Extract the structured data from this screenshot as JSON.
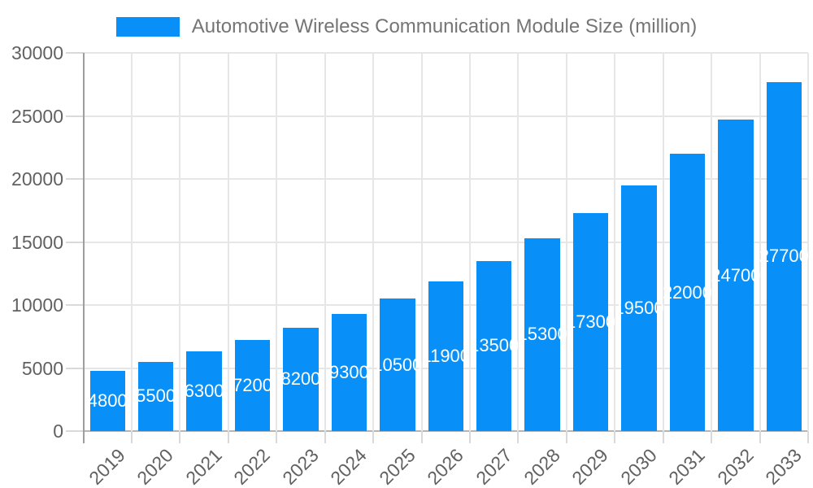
{
  "chart_data": {
    "type": "bar",
    "title": "Automotive Wireless Communication Module Size (million)",
    "categories": [
      "2019",
      "2020",
      "2021",
      "2022",
      "2023",
      "2024",
      "2025",
      "2026",
      "2027",
      "2028",
      "2029",
      "2030",
      "2031",
      "2032",
      "2033"
    ],
    "values": [
      4800,
      5500,
      6300,
      7200,
      8200,
      9300,
      10500,
      11900,
      13500,
      15300,
      17300,
      19500,
      22000,
      24700,
      27700
    ],
    "value_labels": [
      "4800",
      "5500",
      "6300",
      "7200",
      "8200",
      "9300",
      "10500",
      "11900",
      "13500",
      "15300",
      "17300",
      "19500",
      "22000",
      "24700",
      "27700"
    ],
    "xlabel": "",
    "ylabel": "",
    "ylim": [
      0,
      30000
    ],
    "yticks": [
      0,
      5000,
      10000,
      15000,
      20000,
      25000,
      30000
    ],
    "ytick_labels": [
      "0",
      "5000",
      "10000",
      "15000",
      "20000",
      "25000",
      "30000"
    ],
    "grid": true,
    "legend_position": "top",
    "colors": {
      "bar": "#0890f8",
      "value_label": "#ffffff",
      "gridline": "#e6e6e6",
      "baseline": "#b5b5b5",
      "axis_line": "#9e9e9e",
      "tick": "#d9d9d9",
      "axis_text": "#616161",
      "legend_text": "#757575"
    }
  }
}
